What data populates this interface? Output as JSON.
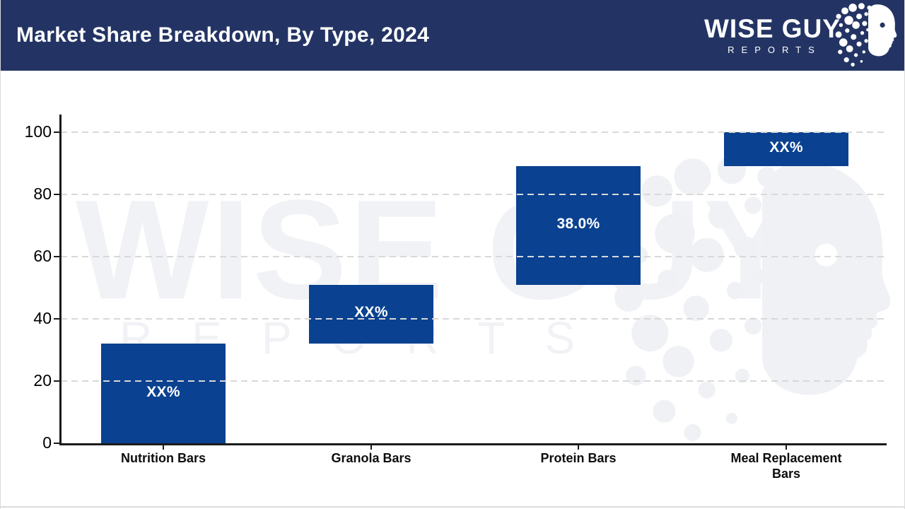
{
  "header": {
    "title": "Market Share Breakdown, By Type, 2024",
    "logo": {
      "line1": "WISE GUY",
      "line2": "REPORTS"
    }
  },
  "watermark": {
    "line1": "WISE GUY",
    "line2": "REPORTS"
  },
  "chart_data": {
    "type": "bar",
    "subtype": "floating-waterfall-segments",
    "title": "Market Share Breakdown, By Type, 2024",
    "categories": [
      "Nutrition Bars",
      "Granola Bars",
      "Protein Bars",
      "Meal Replacement Bars"
    ],
    "segments": [
      {
        "category": "Nutrition Bars",
        "start": 0,
        "end": 32,
        "label": "XX%"
      },
      {
        "category": "Granola Bars",
        "start": 32,
        "end": 51,
        "label": "XX%"
      },
      {
        "category": "Protein Bars",
        "start": 51,
        "end": 89,
        "label": "38.0%"
      },
      {
        "category": "Meal Replacement Bars",
        "start": 89,
        "end": 100,
        "label": "XX%"
      }
    ],
    "yticks": [
      0,
      20,
      40,
      60,
      80,
      100
    ],
    "ylim": [
      0,
      106
    ],
    "xlabel": "",
    "ylabel": "",
    "grid": "dashed-horizontal-over-bars",
    "legend": "none",
    "bar_color": "#0a4190",
    "bar_label_color": "#ffffff"
  },
  "colors": {
    "header_bg": "#233464",
    "bar": "#0a4190",
    "axis": "#1a1a1a",
    "gridline": "#d8d8d8",
    "watermark": "#f1f2f5",
    "text": "#0d0d0d",
    "border": "#dcdcdc"
  }
}
